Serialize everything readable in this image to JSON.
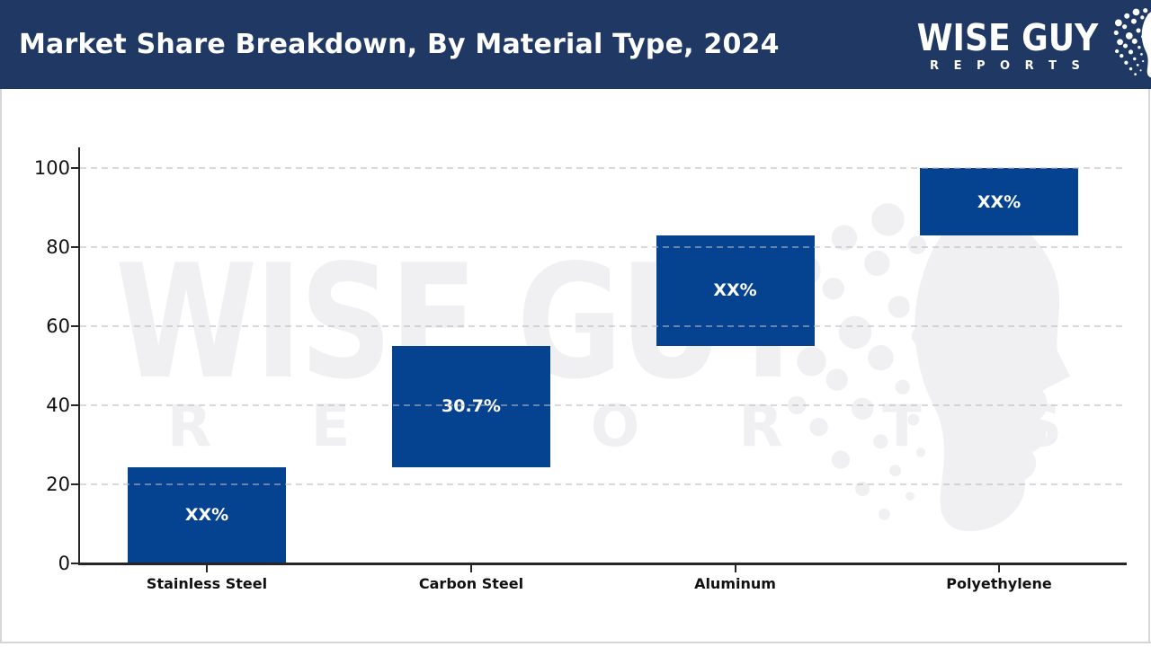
{
  "header": {
    "title": "Market Share Breakdown, By Material Type, 2024",
    "logo": {
      "name": "WISE GUY",
      "tagline": "R E P O R T S"
    }
  },
  "watermark": {
    "name": "WISE GUY",
    "tagline": "R E P O R T S"
  },
  "colors": {
    "header_bg": "#1f3864",
    "bar": "#05428f",
    "bar_label": "#ffffff",
    "grid": "#d9d9d9",
    "axis": "#262626",
    "watermark": "#f0f0f2"
  },
  "chart_data": {
    "type": "bar",
    "subtype": "waterfall",
    "title": "Market Share Breakdown, By Material Type, 2024",
    "categories": [
      "Stainless Steel",
      "Carbon Steel",
      "Aluminum",
      "Polyethylene"
    ],
    "series": [
      {
        "name": "Market share (%)",
        "segments": [
          {
            "category": "Stainless Steel",
            "start": 0,
            "end": 24.4,
            "label": "XX%"
          },
          {
            "category": "Carbon Steel",
            "start": 24.4,
            "end": 55.1,
            "label": "30.7%"
          },
          {
            "category": "Aluminum",
            "start": 55.1,
            "end": 82.9,
            "label": "XX%"
          },
          {
            "category": "Polyethylene",
            "start": 82.9,
            "end": 100,
            "label": "XX%"
          }
        ]
      }
    ],
    "ylim": [
      0,
      105
    ],
    "yticks": [
      0,
      20,
      40,
      60,
      80,
      100
    ],
    "xlabel": "",
    "ylabel": "",
    "grid": "horizontal-dashed",
    "legend": false
  }
}
